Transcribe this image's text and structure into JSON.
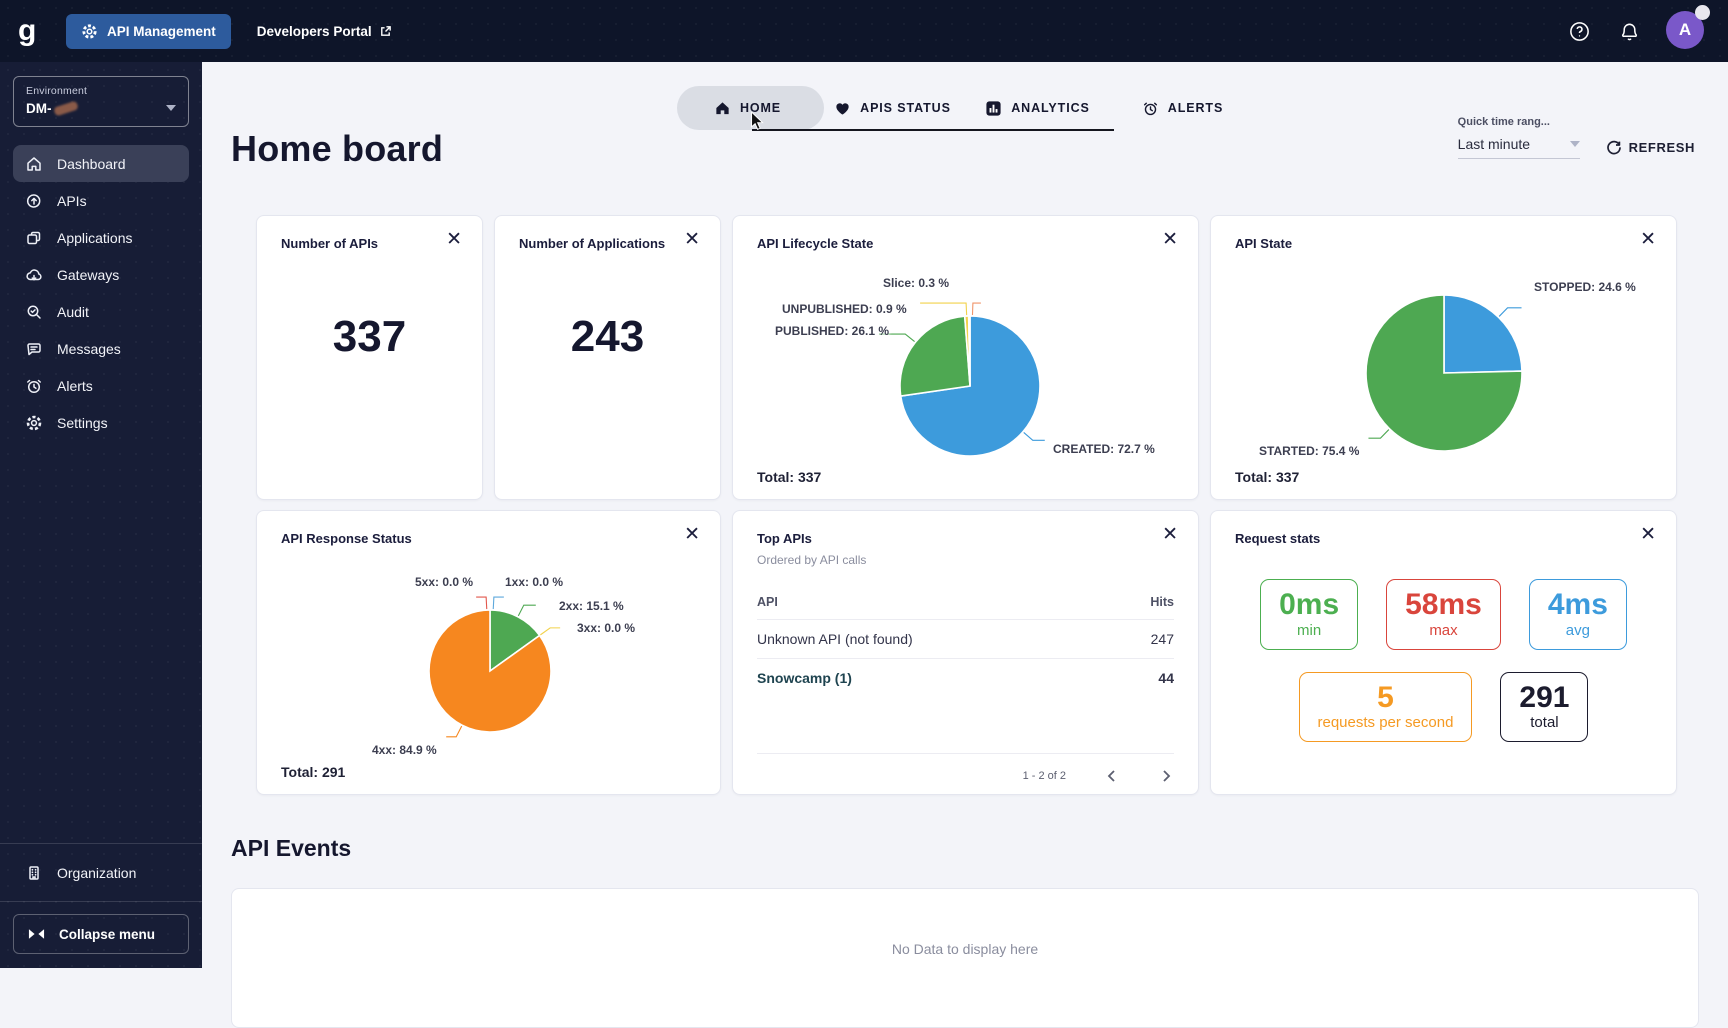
{
  "topbar": {
    "product": "API Management",
    "portal": "Developers Portal",
    "avatar_initial": "A"
  },
  "sidebar": {
    "environment_label": "Environment",
    "environment_value": "DM-",
    "items": [
      {
        "label": "Dashboard",
        "icon": "home-icon",
        "active": true
      },
      {
        "label": "APIs",
        "icon": "cloud-up-icon",
        "active": false
      },
      {
        "label": "Applications",
        "icon": "windows-icon",
        "active": false
      },
      {
        "label": "Gateways",
        "icon": "cloud-icon",
        "active": false
      },
      {
        "label": "Audit",
        "icon": "search-check-icon",
        "active": false
      },
      {
        "label": "Messages",
        "icon": "chat-icon",
        "active": false
      },
      {
        "label": "Alerts",
        "icon": "alarm-icon",
        "active": false
      },
      {
        "label": "Settings",
        "icon": "gear-icon",
        "active": false
      }
    ],
    "organization_label": "Organization",
    "collapse_label": "Collapse menu"
  },
  "header": {
    "title": "Home board",
    "tabs": [
      {
        "label": "HOME",
        "icon": "home-icon",
        "active": true
      },
      {
        "label": "APIS STATUS",
        "icon": "heart-icon",
        "active": false
      },
      {
        "label": "ANALYTICS",
        "icon": "bar-chart-icon",
        "active": false
      },
      {
        "label": "ALERTS",
        "icon": "alarm-icon",
        "active": false
      }
    ],
    "time_label": "Quick time rang...",
    "time_value": "Last minute",
    "refresh_label": "REFRESH"
  },
  "cards": {
    "apis_count": {
      "title": "Number of APIs",
      "value": "337"
    },
    "apps_count": {
      "title": "Number of Applications",
      "value": "243"
    },
    "lifecycle": {
      "title": "API Lifecycle State",
      "total_label": "Total: 337"
    },
    "state": {
      "title": "API State",
      "total_label": "Total: 337"
    },
    "response": {
      "title": "API Response Status",
      "total_label": "Total: 291"
    },
    "top_apis": {
      "title": "Top APIs",
      "subtitle": "Ordered by API calls",
      "col_api": "API",
      "col_hits": "Hits",
      "rows": [
        {
          "api": "Unknown API (not found)",
          "hits": "247"
        },
        {
          "api": "Snowcamp (1)",
          "hits": "44"
        }
      ],
      "pagination": "1 - 2 of 2"
    },
    "request_stats": {
      "title": "Request stats",
      "stats": [
        {
          "value": "0ms",
          "label": "min",
          "color": "#4caf50"
        },
        {
          "value": "58ms",
          "label": "max",
          "color": "#d9453c"
        },
        {
          "value": "4ms",
          "label": "avg",
          "color": "#3d9bdc"
        },
        {
          "value": "5",
          "label": "requests per second",
          "color": "#f59a23"
        },
        {
          "value": "291",
          "label": "total",
          "color": "#1c1c2e"
        }
      ]
    }
  },
  "events": {
    "title": "API Events",
    "empty": "No Data to display here"
  },
  "chart_data": [
    {
      "type": "pie",
      "title": "API Lifecycle State",
      "total": 337,
      "legend_position": "none",
      "slices": [
        {
          "name": "CREATED",
          "pct": 72.7,
          "color": "#3d9bdc",
          "label": "CREATED: 72.7 %",
          "tail": 12
        },
        {
          "name": "PUBLISHED",
          "pct": 26.1,
          "color": "#4ea852",
          "label": "PUBLISHED: 26.1 %",
          "tail": 26
        },
        {
          "name": "UNPUBLISHED",
          "pct": 0.9,
          "color": "#f2d24b",
          "label": "UNPUBLISHED: 0.9 %",
          "tail": 46
        },
        {
          "name": "Slice",
          "pct": 0.3,
          "color": "#f0956a",
          "label": "Slice: 0.3 %",
          "leader_angle": 2,
          "tail": 8
        }
      ]
    },
    {
      "type": "pie",
      "title": "API State",
      "total": 337,
      "legend_position": "none",
      "slices": [
        {
          "name": "STOPPED",
          "pct": 24.6,
          "color": "#3d9bdc",
          "label": "STOPPED: 24.6 %",
          "tail": 14
        },
        {
          "name": "STARTED",
          "pct": 75.4,
          "color": "#4ea852",
          "label": "STARTED: 75.4 %",
          "tail": 12
        }
      ]
    },
    {
      "type": "pie",
      "title": "API Response Status",
      "total": 291,
      "legend_position": "none",
      "slices": [
        {
          "name": "1xx",
          "pct": 0.0,
          "color": "#5da8dc",
          "label": "1xx: 0.0 %",
          "leader_angle": 3,
          "tail": 10
        },
        {
          "name": "2xx",
          "pct": 15.1,
          "color": "#4ea852",
          "label": "2xx: 15.1 %",
          "tail": 12
        },
        {
          "name": "3xx",
          "pct": 0.0,
          "color": "#f2d24b",
          "label": "3xx: 0.0 %",
          "tail": 10
        },
        {
          "name": "4xx",
          "pct": 84.9,
          "color": "#f6871f",
          "label": "4xx: 84.9 %",
          "tail": 10
        },
        {
          "name": "5xx",
          "pct": 0.0,
          "color": "#e2574c",
          "label": "5xx: 0.0 %",
          "leader_angle": -3,
          "tail": 10
        }
      ]
    }
  ]
}
